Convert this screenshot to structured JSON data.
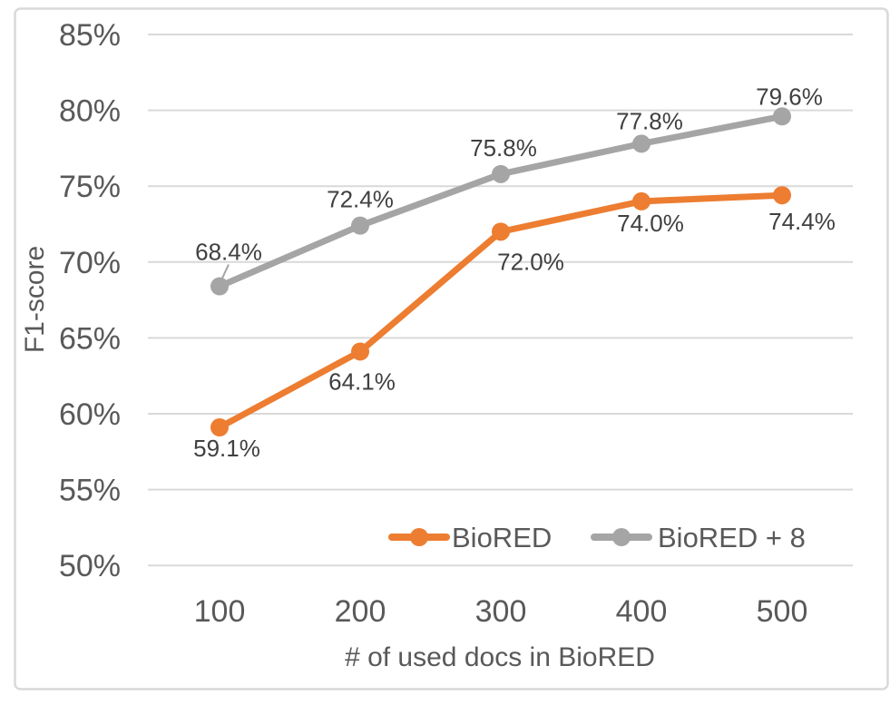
{
  "chart_data": {
    "type": "line",
    "title": "",
    "categories": [
      100,
      200,
      300,
      400,
      500
    ],
    "series": [
      {
        "name": "BioRED",
        "color": "#ED7D31",
        "values": [
          59.1,
          64.1,
          72.0,
          74.0,
          74.4
        ],
        "point_labels": [
          "59.1%",
          "64.1%",
          "72.0%",
          "74.0%",
          "74.4%"
        ]
      },
      {
        "name": "BioRED + 8",
        "color": "#A5A5A5",
        "values": [
          68.4,
          72.4,
          75.8,
          77.8,
          79.6
        ],
        "point_labels": [
          "68.4%",
          "72.4%",
          "75.8%",
          "77.8%",
          "79.6%"
        ]
      }
    ],
    "xlabel": "# of used docs in BioRED",
    "ylabel": "F1-score",
    "xtick_labels": [
      "100",
      "200",
      "300",
      "400",
      "500"
    ],
    "yticks": [
      85,
      80,
      75,
      70,
      65,
      60,
      55,
      50
    ],
    "ytick_labels": [
      "85%",
      "80%",
      "75%",
      "70%",
      "65%",
      "60%",
      "55%",
      "50%"
    ],
    "ylim": [
      50,
      85
    ],
    "grid": true,
    "legend_position": "bottom-inside",
    "legend": [
      "BioRED",
      "BioRED + 8"
    ],
    "colors": {
      "grid": "#D9D9D9",
      "frame": "#D9D9D9",
      "axis_text": "#595959",
      "data_label_text": "#404040",
      "background": "#FFFFFF"
    }
  }
}
